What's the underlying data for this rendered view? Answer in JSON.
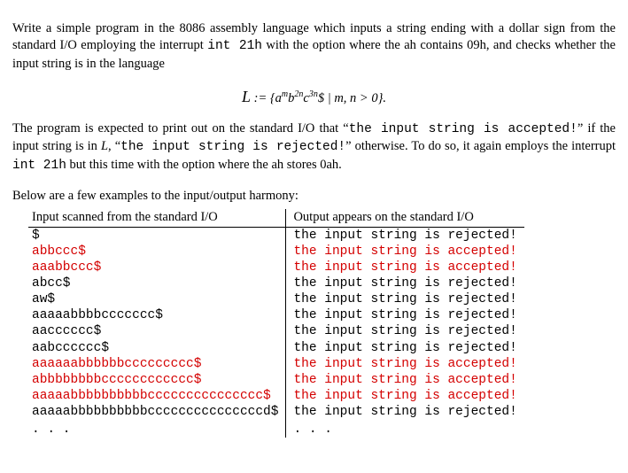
{
  "p1_a": "Write a simple program in the 8086 assembly language which inputs a string ending with a dollar sign from the standard I/O employing the interrupt ",
  "p1_int": "int 21h",
  "p1_b": " with the option where the ah contains 09h, and checks whether the input string is in the language",
  "formula_L": "L",
  "formula_a": " := {a",
  "formula_m": "m",
  "formula_b": "b",
  "formula_2n": "2n",
  "formula_c": "c",
  "formula_3n": "3n",
  "formula_d": "$ | m, n > 0}.",
  "p2_a": "The program is expected to print out on the standard I/O that “",
  "p2_acc": "the input string is accepted!",
  "p2_b": "” if the input string is in ",
  "p2_L": "L",
  "p2_c": ", “",
  "p2_rej": "the input string is rejected!",
  "p2_d": "” otherwise. To do so, it again employs the interrupt ",
  "p2_int": "int 21h",
  "p2_e": " but this time with the option where the ah stores 0ah.",
  "below": "Below are a few examples to the input/output harmony:",
  "colors": {
    "red": "#d40000",
    "black": "#000000"
  },
  "header_in": "Input scanned from the standard I/O",
  "header_out": "Output appears on the standard I/O",
  "msg_acc": "the input string is accepted!",
  "msg_rej": "the input string is rejected!",
  "rows": [
    {
      "in": "$",
      "red": false,
      "acc": false
    },
    {
      "in": "abbccc$",
      "red": true,
      "acc": true
    },
    {
      "in": "aaabbccc$",
      "red": true,
      "acc": true
    },
    {
      "in": "abcc$",
      "red": false,
      "acc": false
    },
    {
      "in": "aw$",
      "red": false,
      "acc": false
    },
    {
      "in": "aaaaabbbbccccccc$",
      "red": false,
      "acc": false
    },
    {
      "in": "aacccccc$",
      "red": false,
      "acc": false
    },
    {
      "in": "aabcccccc$",
      "red": false,
      "acc": false
    },
    {
      "in": "aaaaaabbbbbbccccccccc$",
      "red": true,
      "acc": true
    },
    {
      "in": "abbbbbbbbcccccccccccc$",
      "red": true,
      "acc": true
    },
    {
      "in": "aaaaabbbbbbbbbbccccccccccccccc$",
      "red": true,
      "acc": true
    },
    {
      "in": "aaaaabbbbbbbbbbcccccccccccccccd$",
      "red": false,
      "acc": false
    }
  ],
  "ellipsis": ". . ."
}
